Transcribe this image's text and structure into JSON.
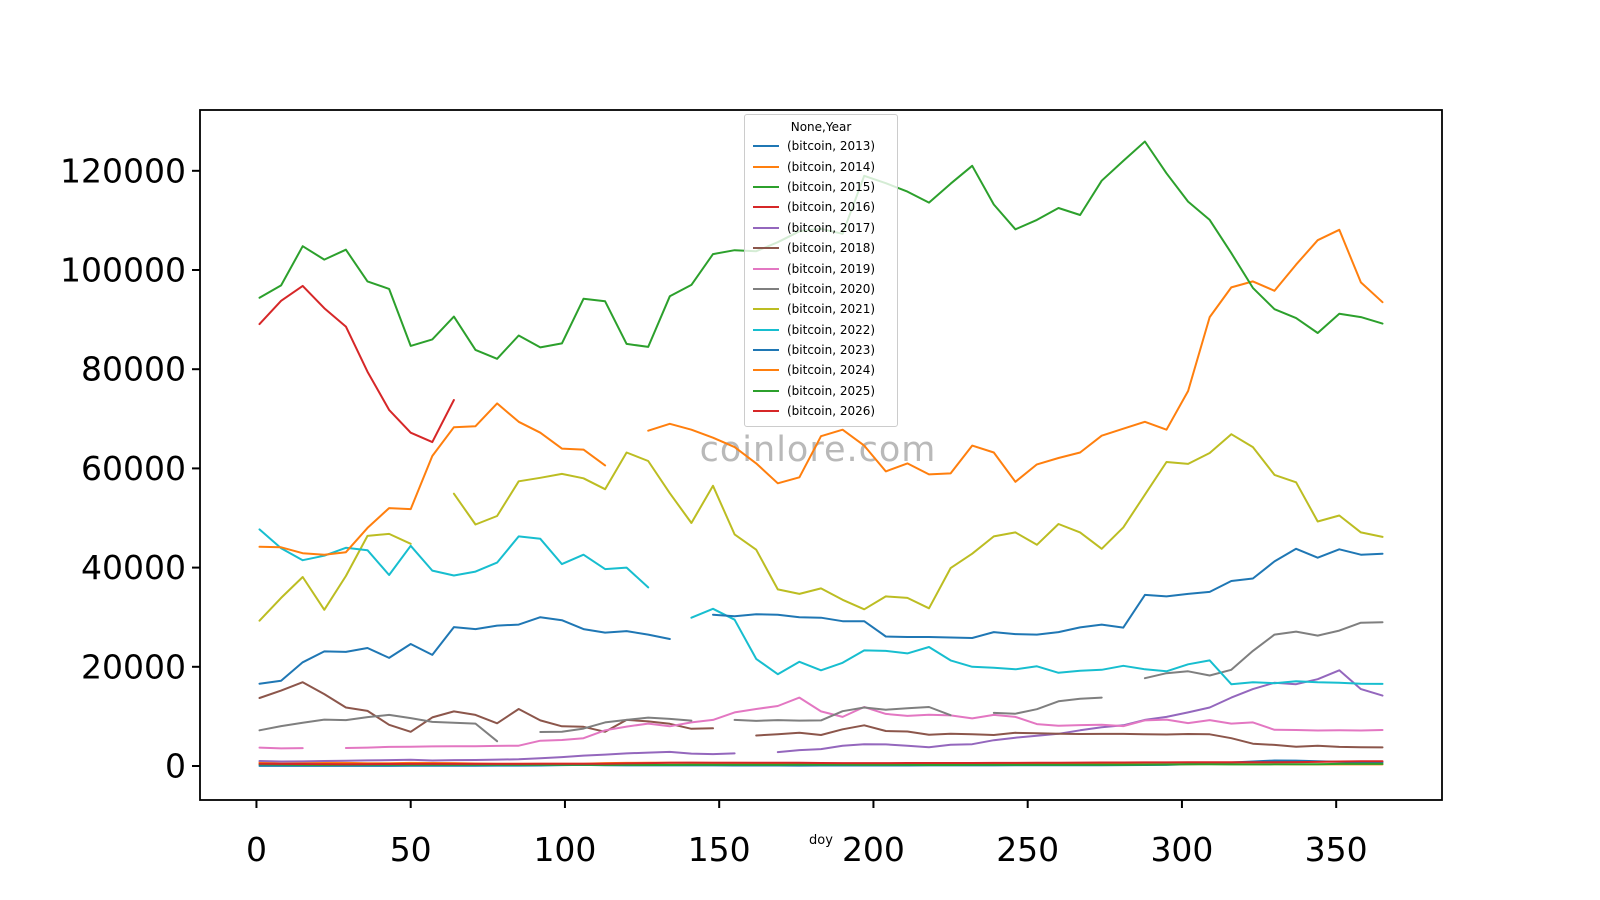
{
  "watermark": "coinlore.com",
  "chart_data": {
    "type": "line",
    "title": "",
    "xlabel": "doy",
    "ylabel": "",
    "grid": false,
    "legend_title": "None,Year",
    "legend_position": "upper center",
    "xlim": [
      -18.3,
      384.3
    ],
    "ylim": [
      -6855,
      132260
    ],
    "x_ticks": [
      0,
      50,
      100,
      150,
      200,
      250,
      300,
      350
    ],
    "y_ticks": [
      0,
      20000,
      40000,
      60000,
      80000,
      100000,
      120000
    ],
    "axis_color": "#000000",
    "days": [
      1,
      8,
      15,
      22,
      29,
      36,
      43,
      50,
      57,
      64,
      71,
      78,
      85,
      92,
      99,
      106,
      113,
      120,
      127,
      134,
      141,
      148,
      155,
      162,
      169,
      176,
      183,
      190,
      197,
      204,
      211,
      218,
      225,
      232,
      239,
      246,
      253,
      260,
      267,
      274,
      281,
      288,
      295,
      302,
      309,
      316,
      323,
      330,
      337,
      344,
      351,
      358,
      365
    ],
    "series": [
      {
        "name": "(bitcoin, 2013)",
        "year": 2013,
        "color": "#1f77b4",
        "values": [
          13,
          14,
          16,
          18,
          20,
          25,
          30,
          34,
          40,
          47,
          60,
          75,
          90,
          110,
          180,
          230,
          160,
          120,
          115,
          125,
          130,
          120,
          110,
          100,
          95,
          90,
          95,
          97,
          100,
          105,
          110,
          115,
          120,
          125,
          130,
          135,
          140,
          135,
          140,
          155,
          180,
          200,
          230,
          340,
          450,
          700,
          900,
          1100,
          1080,
          950,
          820,
          760,
          750
        ]
      },
      {
        "name": "(bitcoin, 2014)",
        "year": 2014,
        "color": "#ff7f0e",
        "values": [
          770,
          830,
          800,
          700,
          620,
          550,
          565,
          630,
          610,
          580,
          500,
          460,
          445,
          450,
          440,
          455,
          580,
          630,
          650,
          640,
          630,
          620,
          615,
          600,
          590,
          580,
          510,
          500,
          490,
          480,
          470,
          460,
          400,
          380,
          350,
          340,
          330,
          345,
          355,
          365,
          375,
          370,
          360,
          350,
          375,
          370,
          355,
          340,
          330,
          325,
          320,
          318,
          315
        ]
      },
      {
        "name": "(bitcoin, 2015)",
        "year": 2015,
        "color": "#2ca02c",
        "values": [
          314,
          290,
          220,
          210,
          240,
          235,
          245,
          255,
          250,
          245,
          240,
          235,
          245,
          235,
          240,
          236,
          230,
          232,
          228,
          230,
          240,
          250,
          262,
          258,
          270,
          285,
          280,
          277,
          265,
          255,
          235,
          230,
          230,
          232,
          235,
          237,
          240,
          242,
          245,
          250,
          262,
          275,
          310,
          380,
          360,
          330,
          325,
          340,
          355,
          365,
          415,
          430,
          428
        ]
      },
      {
        "name": "(bitcoin, 2016)",
        "year": 2016,
        "color": "#d62728",
        "values": [
          434,
          430,
          395,
          375,
          370,
          385,
          400,
          415,
          418,
          417,
          420,
          425,
          430,
          445,
          450,
          455,
          460,
          530,
          580,
          640,
          680,
          670,
          665,
          660,
          655,
          650,
          600,
          580,
          575,
          590,
          605,
          610,
          608,
          612,
          615,
          630,
          640,
          650,
          680,
          700,
          710,
          720,
          730,
          740,
          745,
          750,
          755,
          770,
          790,
          830,
          900,
          950,
          960
        ]
      },
      {
        "name": "(bitcoin, 2017)",
        "year": 2017,
        "color": "#9467bd",
        "values": [
          1000,
          900,
          920,
          1010,
          1050,
          1130,
          1190,
          1250,
          1100,
          1180,
          1210,
          1290,
          1350,
          1550,
          1800,
          2100,
          2300,
          2550,
          2700,
          2850,
          2500,
          2400,
          2550,
          null,
          2800,
          3200,
          3400,
          4100,
          4400,
          4350,
          4100,
          3800,
          4300,
          4400,
          5200,
          5700,
          6100,
          6500,
          7200,
          7800,
          8200,
          9300,
          9900,
          10800,
          11800,
          13800,
          15500,
          16800,
          16500,
          17500,
          19300,
          15500,
          14200
        ]
      },
      {
        "name": "(bitcoin, 2018)",
        "year": 2018,
        "color": "#8c564b",
        "values": [
          13700,
          15200,
          16900,
          14500,
          11800,
          11100,
          8300,
          6900,
          9800,
          11000,
          10300,
          8600,
          11500,
          9200,
          8000,
          7900,
          6900,
          9300,
          9000,
          8500,
          7500,
          7600,
          null,
          6150,
          6400,
          6700,
          6250,
          7400,
          8200,
          7050,
          6950,
          6300,
          6500,
          6400,
          6250,
          6700,
          6600,
          6500,
          6450,
          6480,
          6470,
          6400,
          6350,
          6450,
          6400,
          5600,
          4500,
          4250,
          3900,
          4100,
          3850,
          3800,
          3740
        ]
      },
      {
        "name": "(bitcoin, 2019)",
        "year": 2019,
        "color": "#e377c2",
        "values": [
          3700,
          3550,
          3600,
          null,
          3620,
          3700,
          3850,
          3900,
          3950,
          4000,
          3980,
          4050,
          4100,
          5100,
          5250,
          5600,
          7200,
          7950,
          8550,
          8000,
          8800,
          9300,
          10800,
          11500,
          12100,
          13800,
          11000,
          9900,
          11900,
          10500,
          10100,
          10350,
          10200,
          9600,
          10300,
          9900,
          8450,
          8100,
          8250,
          8300,
          8050,
          9200,
          9350,
          8650,
          9250,
          8550,
          8800,
          7300,
          7250,
          7150,
          7200,
          7150,
          7250
        ]
      },
      {
        "name": "(bitcoin, 2020)",
        "year": 2020,
        "color": "#7f7f7f",
        "values": [
          7200,
          8050,
          8700,
          9350,
          9250,
          9850,
          10300,
          9650,
          8900,
          8700,
          8550,
          5000,
          null,
          6850,
          6900,
          7550,
          8800,
          9300,
          9750,
          9500,
          9150,
          null,
          9300,
          9100,
          9250,
          9150,
          9200,
          11050,
          11800,
          11350,
          11650,
          11900,
          10250,
          null,
          10700,
          10550,
          11450,
          13050,
          13550,
          13800,
          null,
          17700,
          18700,
          19100,
          18250,
          19400,
          23200,
          26500,
          27100,
          26300,
          27300,
          28900,
          29000
        ]
      },
      {
        "name": "(bitcoin, 2021)",
        "year": 2021,
        "color": "#bcbd22",
        "values": [
          29300,
          33900,
          38100,
          31500,
          38300,
          46400,
          46800,
          44800,
          null,
          54900,
          48700,
          50400,
          57400,
          58100,
          58900,
          58000,
          55800,
          63200,
          61500,
          55000,
          49000,
          56500,
          46700,
          43600,
          35600,
          34700,
          35800,
          33500,
          31600,
          34200,
          33900,
          31800,
          39900,
          42800,
          46300,
          47100,
          44600,
          48800,
          47100,
          43800,
          48100,
          54700,
          61300,
          60900,
          63100,
          66900,
          64300,
          58700,
          57200,
          49300,
          50500,
          47100,
          46200
        ]
      },
      {
        "name": "(bitcoin, 2022)",
        "year": 2022,
        "color": "#17becf",
        "values": [
          47700,
          43900,
          41500,
          42400,
          44000,
          43500,
          38500,
          44400,
          39400,
          38400,
          39200,
          41000,
          46300,
          45800,
          40700,
          42600,
          39700,
          40000,
          36000,
          null,
          29900,
          31700,
          29500,
          21600,
          18500,
          21000,
          19300,
          20800,
          23300,
          23200,
          22700,
          24000,
          21300,
          20000,
          19800,
          19500,
          20100,
          18800,
          19200,
          19400,
          20200,
          19500,
          19100,
          20500,
          21300,
          16500,
          16900,
          16700,
          17100,
          16900,
          16800,
          16600,
          16550
        ]
      },
      {
        "name": "(bitcoin, 2023)",
        "year": 2023,
        "color": "#1f77b4",
        "values": [
          16600,
          17200,
          20900,
          23100,
          23000,
          23800,
          21800,
          24600,
          22400,
          28000,
          27600,
          28300,
          28500,
          30000,
          29400,
          27600,
          26900,
          27200,
          26500,
          25600,
          null,
          30500,
          30200,
          30600,
          30500,
          30000,
          29900,
          29200,
          29200,
          26100,
          26000,
          26000,
          25900,
          25800,
          27000,
          26600,
          26500,
          27000,
          27950,
          28500,
          27900,
          34500,
          34200,
          34700,
          35100,
          37300,
          37800,
          41250,
          43800,
          42000,
          43700,
          42600,
          42800
        ]
      },
      {
        "name": "(bitcoin, 2024)",
        "year": 2024,
        "color": "#ff7f0e",
        "values": [
          44200,
          44100,
          42900,
          42600,
          43100,
          48000,
          52000,
          51800,
          62500,
          68300,
          68500,
          73100,
          69400,
          67200,
          64000,
          63800,
          60600,
          null,
          67600,
          69000,
          67800,
          66200,
          64300,
          61000,
          57000,
          58200,
          66500,
          67800,
          64600,
          59400,
          61000,
          58800,
          59000,
          64600,
          63200,
          57300,
          60800,
          62100,
          63200,
          66600,
          68000,
          69400,
          67800,
          75600,
          90500,
          96500,
          97700,
          95800,
          101100,
          106000,
          108100,
          97500,
          93500
        ]
      },
      {
        "name": "(bitcoin, 2025)",
        "year": 2025,
        "color": "#2ca02c",
        "values": [
          94400,
          96900,
          104800,
          102100,
          104100,
          97700,
          96200,
          84700,
          86000,
          90600,
          83900,
          82100,
          86800,
          84400,
          85200,
          94200,
          93700,
          85100,
          84500,
          94700,
          97000,
          103200,
          104000,
          103800,
          105600,
          107800,
          108300,
          107300,
          119000,
          117500,
          115800,
          113600,
          117400,
          121000,
          113200,
          108200,
          110100,
          112500,
          111100,
          118000,
          122000,
          125900,
          119500,
          113800,
          110100,
          103400,
          96400,
          92100,
          90300,
          87300,
          91200,
          90500,
          89200
        ]
      },
      {
        "name": "(bitcoin, 2026)",
        "year": 2026,
        "color": "#d62728",
        "values": [
          89100,
          93800,
          96800,
          92300,
          88600,
          79500,
          71800,
          67200,
          65300,
          73800
        ]
      }
    ]
  }
}
